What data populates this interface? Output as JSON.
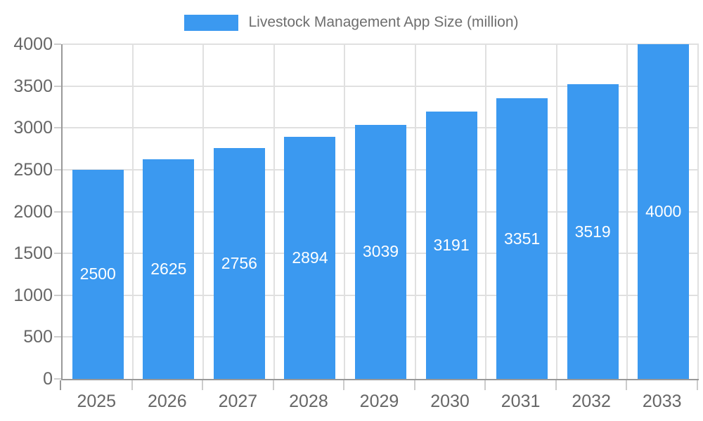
{
  "legend": {
    "label": "Livestock Management App Size (million)"
  },
  "chart_data": {
    "type": "bar",
    "title": "Livestock Management App Size (million)",
    "categories": [
      "2025",
      "2026",
      "2027",
      "2028",
      "2029",
      "2030",
      "2031",
      "2032",
      "2033"
    ],
    "series": [
      {
        "name": "Livestock Management App Size (million)",
        "values": [
          2500,
          2625,
          2756,
          2894,
          3039,
          3191,
          3351,
          3519,
          4000
        ]
      }
    ],
    "bar_labels": [
      "2500",
      "2625",
      "2756",
      "2894",
      "3039",
      "3191",
      "3351",
      "3519",
      "4000"
    ],
    "xlabel": "",
    "ylabel": "",
    "ylim": [
      0,
      4000
    ],
    "ytick_step": 500,
    "yticks": [
      "0",
      "500",
      "1000",
      "1500",
      "2000",
      "2500",
      "3000",
      "3500",
      "4000"
    ],
    "grid": true,
    "legend_position": "top",
    "colors": {
      "bar": "#3B99F0",
      "bar_label": "#ffffff",
      "axis_text": "#666666",
      "legend_text": "#6e6e6e",
      "gridline": "#e0e0e0",
      "axis_line": "#999999",
      "tick": "#cccccc"
    }
  }
}
